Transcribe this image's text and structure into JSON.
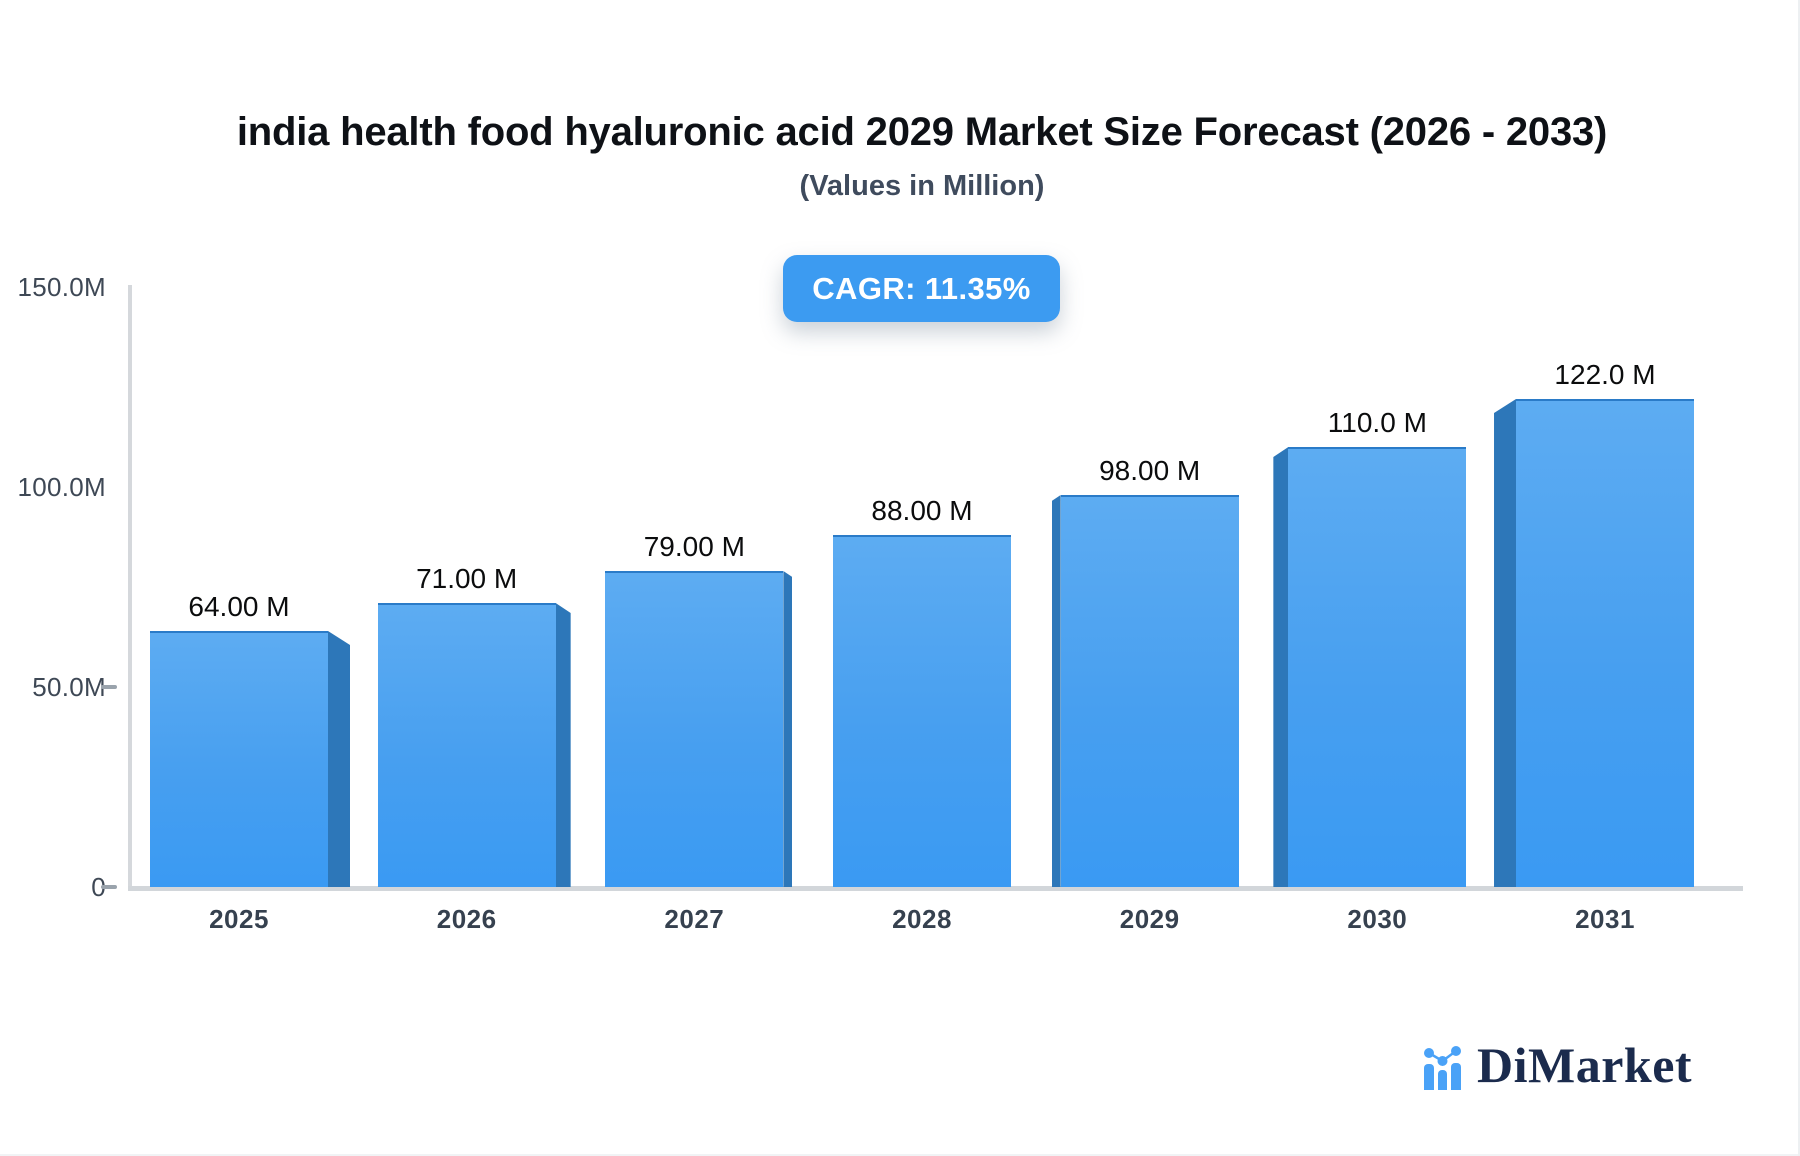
{
  "chart_data": {
    "type": "bar",
    "title": "india health food hyaluronic acid 2029 Market Size Forecast (2026 - 2033)",
    "subtitle": "(Values in Million)",
    "cagr_label": "CAGR: 11.35%",
    "cagr_value": "11.35%",
    "unit": "Million",
    "categories": [
      "2025",
      "2026",
      "2027",
      "2028",
      "2029",
      "2030",
      "2031"
    ],
    "values": [
      64,
      71,
      79,
      88,
      98,
      110,
      122
    ],
    "value_labels": [
      "64.00 M",
      "71.00 M",
      "79.00 M",
      "88.00 M",
      "98.00 M",
      "110.0 M",
      "122.0 M"
    ],
    "ylim": [
      0,
      150
    ],
    "yticks": [
      {
        "label": "150.0M",
        "value": 150
      },
      {
        "label": "100.0M",
        "value": 100
      },
      {
        "label": "50.0M",
        "value": 50
      },
      {
        "label": "0",
        "value": 0
      }
    ],
    "legend": null,
    "grid": "off",
    "colors": {
      "bar_face": "#3b9bf2",
      "bar_side": "#2d77b9",
      "badge_background": "#3c9bf1",
      "badge_text": "#ffffff",
      "axis_line": "#d3d7db",
      "tick_text": "#3e4855",
      "value_text": "#0b0c0d",
      "title_text": "#0e1116",
      "subtitle_text": "#3f4b5d"
    }
  },
  "branding": {
    "logo_text": "DiMarket",
    "logo_icon": "bar-chart-with-dots-icon",
    "logo_text_color": "#1b2b4d",
    "logo_accent": "#4aa2f7"
  }
}
